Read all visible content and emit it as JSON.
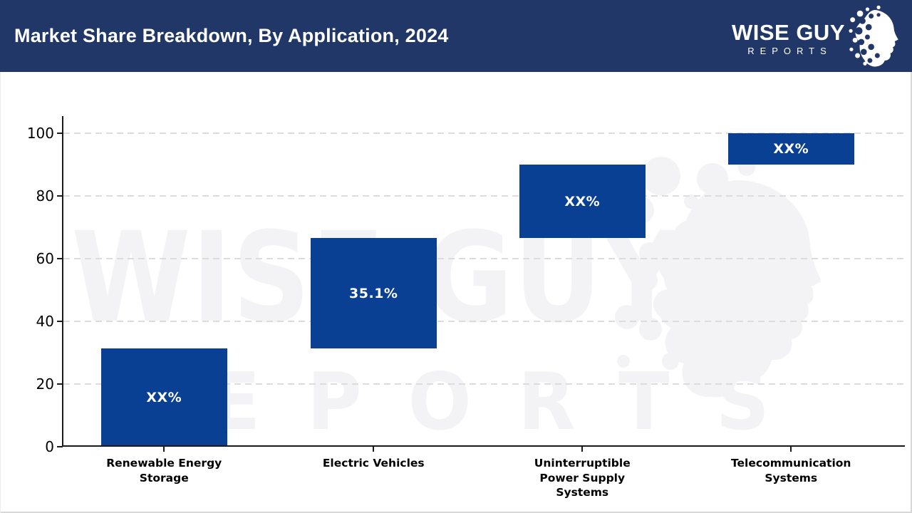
{
  "header": {
    "title": "Market Share Breakdown, By Application, 2024",
    "logo": {
      "name_line": "WISE GUY",
      "reports_line": "REPORTS"
    }
  },
  "watermark": {
    "name_line": "WISE GUY",
    "reports_line": "REPORTS"
  },
  "colors": {
    "header_bg": "#203768",
    "bar": "#0a4094",
    "grid": "#dcdcdc",
    "axis": "#1a1a1a",
    "watermark": "#f3f3f5"
  },
  "chart_data": {
    "type": "bar",
    "subtype": "waterfall",
    "title": "Market Share Breakdown, By Application, 2024",
    "categories": [
      "Renewable Energy\nStorage",
      "Electric Vehicles",
      "Uninterruptible\nPower Supply\nSystems",
      "Telecommunication\nSystems"
    ],
    "segments": [
      {
        "start": 0,
        "end": 31.4,
        "label": "XX%"
      },
      {
        "start": 31.4,
        "end": 66.5,
        "label": "35.1%"
      },
      {
        "start": 66.5,
        "end": 90,
        "label": "XX%"
      },
      {
        "start": 90,
        "end": 100,
        "label": "XX%"
      }
    ],
    "yticks": [
      0,
      20,
      40,
      60,
      80,
      100
    ],
    "ylim": [
      0,
      105
    ],
    "xlabel": "",
    "ylabel": "",
    "grid": "dashed-horizontal",
    "legend": "none",
    "bar_color": "#0a4094",
    "value_label_color": "#ffffff"
  }
}
